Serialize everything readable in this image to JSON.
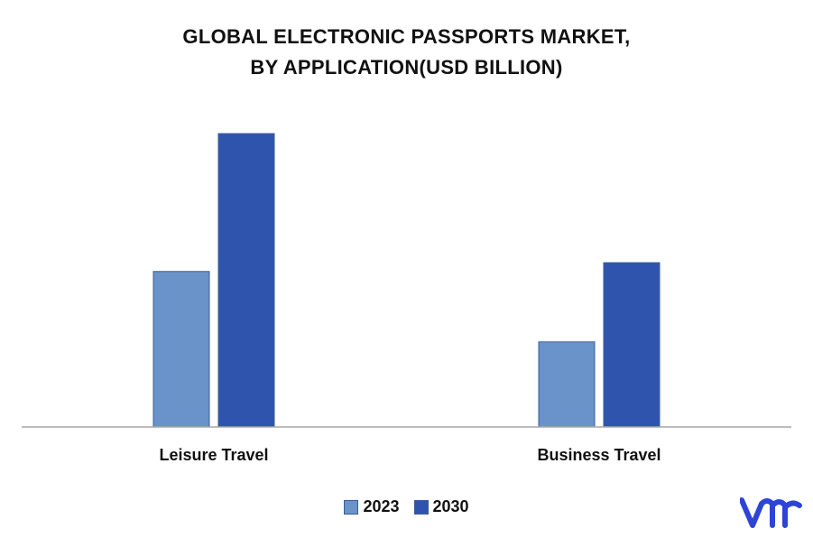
{
  "header": {
    "title_line1": "GLOBAL ELECTRONIC PASSPORTS MARKET,",
    "title_line2": "BY APPLICATION(USD BILLION)"
  },
  "chart_data": {
    "type": "bar",
    "title": "GLOBAL ELECTRONIC PASSPORTS MARKET, BY APPLICATION(USD BILLION)",
    "categories": [
      "Leisure Travel",
      "Business Travel"
    ],
    "series": [
      {
        "name": "2023",
        "values": [
          5.3,
          2.9
        ],
        "color": "#6a93c9"
      },
      {
        "name": "2030",
        "values": [
          10.0,
          5.6
        ],
        "color": "#2f54ad"
      }
    ],
    "ylim": [
      0,
      10.5
    ],
    "xlabel": "",
    "ylabel": "",
    "grid": false,
    "legend_position": "bottom"
  },
  "logo": {
    "name": "vmr-logo",
    "color": "#2d44d6"
  }
}
